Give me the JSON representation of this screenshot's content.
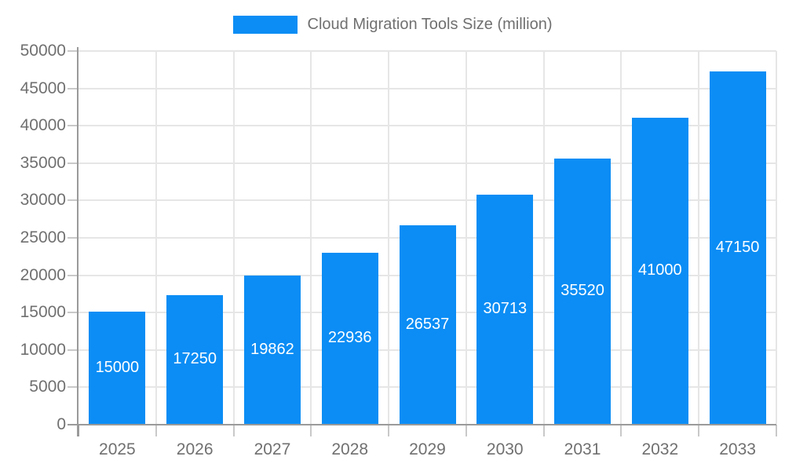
{
  "chart_data": {
    "type": "bar",
    "title": "Cloud Migration Tools Size (million)",
    "categories": [
      "2025",
      "2026",
      "2027",
      "2028",
      "2029",
      "2030",
      "2031",
      "2032",
      "2033"
    ],
    "series": [
      {
        "name": "Cloud Migration Tools Size (million)",
        "values": [
          15000,
          17250,
          19862,
          22936,
          26537,
          30713,
          35520,
          41000,
          47150
        ]
      }
    ],
    "value_labels": [
      "15000",
      "17250",
      "19862",
      "22936",
      "26537",
      "30713",
      "35520",
      "41000",
      "47150"
    ],
    "ytick_labels": [
      "0",
      "5000",
      "10000",
      "15000",
      "20000",
      "25000",
      "30000",
      "35000",
      "40000",
      "45000",
      "50000"
    ],
    "ylim": [
      0,
      50000
    ],
    "ytick_step": 5000,
    "xlabel": "",
    "ylabel": "",
    "grid": true,
    "legend_position": "top-center",
    "colors": {
      "bar": "#0b8df5",
      "value_label": "#ffffff",
      "axis": "#9a9a9a",
      "gridline": "#e6e6e6",
      "tick": "#c9c9c9",
      "text": "#707070"
    }
  }
}
